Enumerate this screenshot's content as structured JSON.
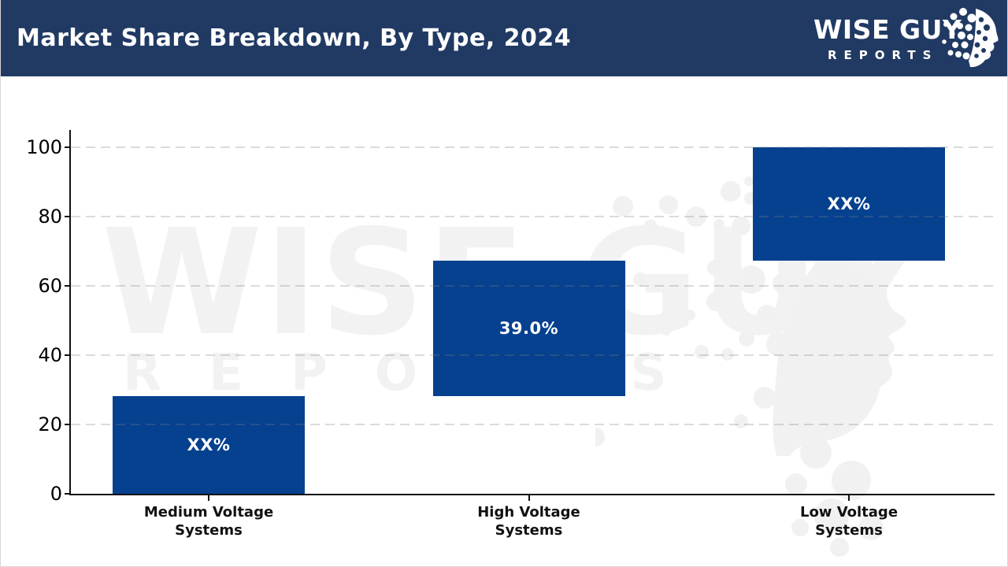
{
  "header": {
    "title": "Market Share Breakdown, By Type, 2024",
    "logo": {
      "brand_line1": "WISE GUY",
      "brand_line2": "REPORTS"
    }
  },
  "watermark": {
    "line1": "WISE GUY",
    "line2": "REPORTS"
  },
  "colors": {
    "header_navy": "#213a63",
    "bar_blue": "#05418f",
    "watermark_gray": "#f2f2f2",
    "grid_gray": "#dcdcdc"
  },
  "chart_data": {
    "type": "bar",
    "variant": "floating-segment-breakdown",
    "title": "Market Share Breakdown, By Type, 2024",
    "categories": [
      {
        "line1": "Medium Voltage",
        "line2": "Systems"
      },
      {
        "line1": "High Voltage",
        "line2": "Systems"
      },
      {
        "line1": "Low Voltage",
        "line2": "Systems"
      }
    ],
    "segments": [
      {
        "category": "Medium Voltage Systems",
        "start": 0,
        "end": 28.2,
        "label": "XX%"
      },
      {
        "category": "High Voltage Systems",
        "start": 28.2,
        "end": 67.2,
        "label": "39.0%"
      },
      {
        "category": "Low Voltage Systems",
        "start": 67.2,
        "end": 100,
        "label": "XX%"
      }
    ],
    "ylabel": "",
    "xlabel": "",
    "ylim": [
      0,
      104
    ],
    "yticks": [
      0,
      20,
      40,
      60,
      80,
      100
    ],
    "grid": "horizontal-dashed",
    "legend": "none",
    "bar_color": "#05418f",
    "bar_label_color": "#ffffff"
  }
}
